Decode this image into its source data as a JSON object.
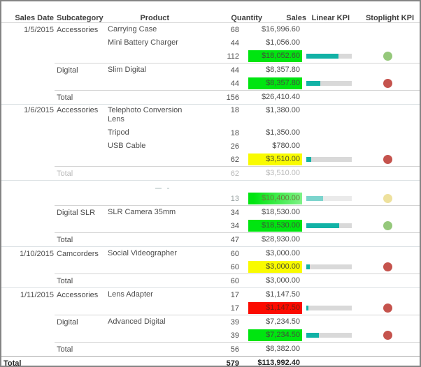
{
  "columns": {
    "sales_date": "Sales Date",
    "subcategory": "Subcategory",
    "product": "Product",
    "quantity": "Quantity",
    "sales": "Sales",
    "linear_kpi": "Linear KPI",
    "stoplight_kpi": "Stoplight KPI"
  },
  "colors": {
    "kpi_teal": "#12b2a6",
    "kpi_track": "#d9d9d9",
    "green_cell": "#00e510",
    "yellow_cell": "#f9fb00",
    "red_cell": "#fb0b00",
    "dot_green": "#95c87b",
    "dot_red": "#c5534d",
    "dot_yellow": "#ead985"
  },
  "rows": [
    {
      "date": "1/5/2015",
      "subcategory": "Accessories",
      "product": "Carrying Case",
      "quantity": "68",
      "sales": "$16,996.60"
    },
    {
      "product": "Mini Battery Charger",
      "quantity": "44",
      "sales": "$1,056.00"
    },
    {
      "quantity": "112",
      "sales": "$18,052.60",
      "sales_bg": "#00e510",
      "kpi_fill": "71%",
      "dot_color": "#95c87b"
    },
    {
      "subcategory": "Digital",
      "product": "Slim Digital",
      "quantity": "44",
      "sales": "$8,357.80"
    },
    {
      "quantity": "44",
      "sales": "$8,357.80",
      "sales_bg": "#00e510",
      "kpi_fill": "31%",
      "dot_color": "#c5534d"
    },
    {
      "label": "Total",
      "quantity": "156",
      "sales": "$26,410.40"
    },
    {
      "date": "1/6/2015",
      "subcategory": "Accessories",
      "product": "Telephoto Conversion Lens",
      "quantity": "18",
      "sales": "$1,380.00"
    },
    {
      "product": "Tripod",
      "quantity": "18",
      "sales": "$1,350.00"
    },
    {
      "product": "USB Cable",
      "quantity": "26",
      "sales": "$780.00"
    },
    {
      "quantity": "62",
      "sales": "$3,510.00",
      "sales_bg": "#f9fb00",
      "kpi_fill": "11%",
      "dot_color": "#c5534d"
    },
    {
      "label": "Total",
      "quantity": "62",
      "sales": "$3,510.00"
    },
    {},
    {
      "quantity": "13",
      "sales": "$10,400.00",
      "sales_bg": "#00e510",
      "kpi_fill": "37%",
      "dot_color": "#ead985"
    },
    {
      "subcategory": "Digital SLR",
      "product": "SLR Camera 35mm",
      "quantity": "34",
      "sales": "$18,530.00"
    },
    {
      "quantity": "34",
      "sales": "$18,530.00",
      "sales_bg": "#00e510",
      "kpi_fill": "72%",
      "dot_color": "#95c87b"
    },
    {
      "label": "Total",
      "quantity": "47",
      "sales": "$28,930.00"
    },
    {
      "date": "1/10/2015",
      "subcategory": "Camcorders",
      "product": "Social Videographer",
      "quantity": "60",
      "sales": "$3,000.00"
    },
    {
      "quantity": "60",
      "sales": "$3,000.00",
      "sales_bg": "#f9fb00",
      "kpi_fill": "8%",
      "dot_color": "#c5534d"
    },
    {
      "label": "Total",
      "quantity": "60",
      "sales": "$3,000.00"
    },
    {
      "date": "1/11/2015",
      "subcategory": "Accessories",
      "product": "Lens Adapter",
      "quantity": "17",
      "sales": "$1,147.50"
    },
    {
      "quantity": "17",
      "sales": "$1,147.50",
      "sales_bg": "#fb0b00",
      "kpi_fill": "5%",
      "dot_color": "#c5534d"
    },
    {
      "subcategory": "Digital",
      "product": "Advanced Digital",
      "quantity": "39",
      "sales": "$7,234.50"
    },
    {
      "quantity": "39",
      "sales": "$7,234.50",
      "sales_bg": "#00e510",
      "kpi_fill": "28%",
      "dot_color": "#c5534d"
    },
    {
      "label": "Total",
      "quantity": "56",
      "sales": "$8,382.00"
    }
  ],
  "grand_total": {
    "label": "Total",
    "quantity": "579",
    "sales": "$113,992.40"
  }
}
